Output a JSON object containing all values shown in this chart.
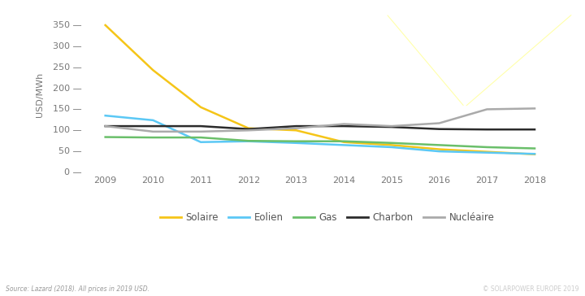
{
  "years": [
    2009,
    2010,
    2011,
    2012,
    2013,
    2014,
    2015,
    2016,
    2017,
    2018
  ],
  "solaire": [
    350,
    243,
    155,
    105,
    100,
    72,
    65,
    55,
    49,
    43
  ],
  "eolien": [
    135,
    124,
    72,
    74,
    70,
    65,
    60,
    50,
    47,
    44
  ],
  "gas": [
    84,
    83,
    83,
    75,
    74,
    74,
    70,
    65,
    60,
    57
  ],
  "charbon": [
    110,
    110,
    110,
    103,
    110,
    110,
    108,
    103,
    102,
    102
  ],
  "nucleaire": [
    110,
    97,
    97,
    100,
    105,
    115,
    110,
    117,
    150,
    152
  ],
  "colors": {
    "solaire": "#f5c518",
    "eolien": "#5bc8f5",
    "gas": "#6abf6a",
    "charbon": "#2b2b2b",
    "nucleaire": "#aaaaaa"
  },
  "ylabel": "USD/MWh",
  "ylim": [
    0,
    370
  ],
  "yticks": [
    0,
    50,
    100,
    150,
    200,
    250,
    300,
    350
  ],
  "xlim": [
    2008.5,
    2018.8
  ],
  "legend_labels": [
    "Solaire",
    "Eolien",
    "Gas",
    "Charbon",
    "Nucléaire"
  ],
  "source_text": "Source: Lazard (2018). All prices in 2019 USD.",
  "copyright_text": "© SOLARPOWER EUROPE 2019",
  "background_color": "#ffffff",
  "triangle_edge_color": "#ffffcc",
  "triangle_fill_color": "#fffff5"
}
